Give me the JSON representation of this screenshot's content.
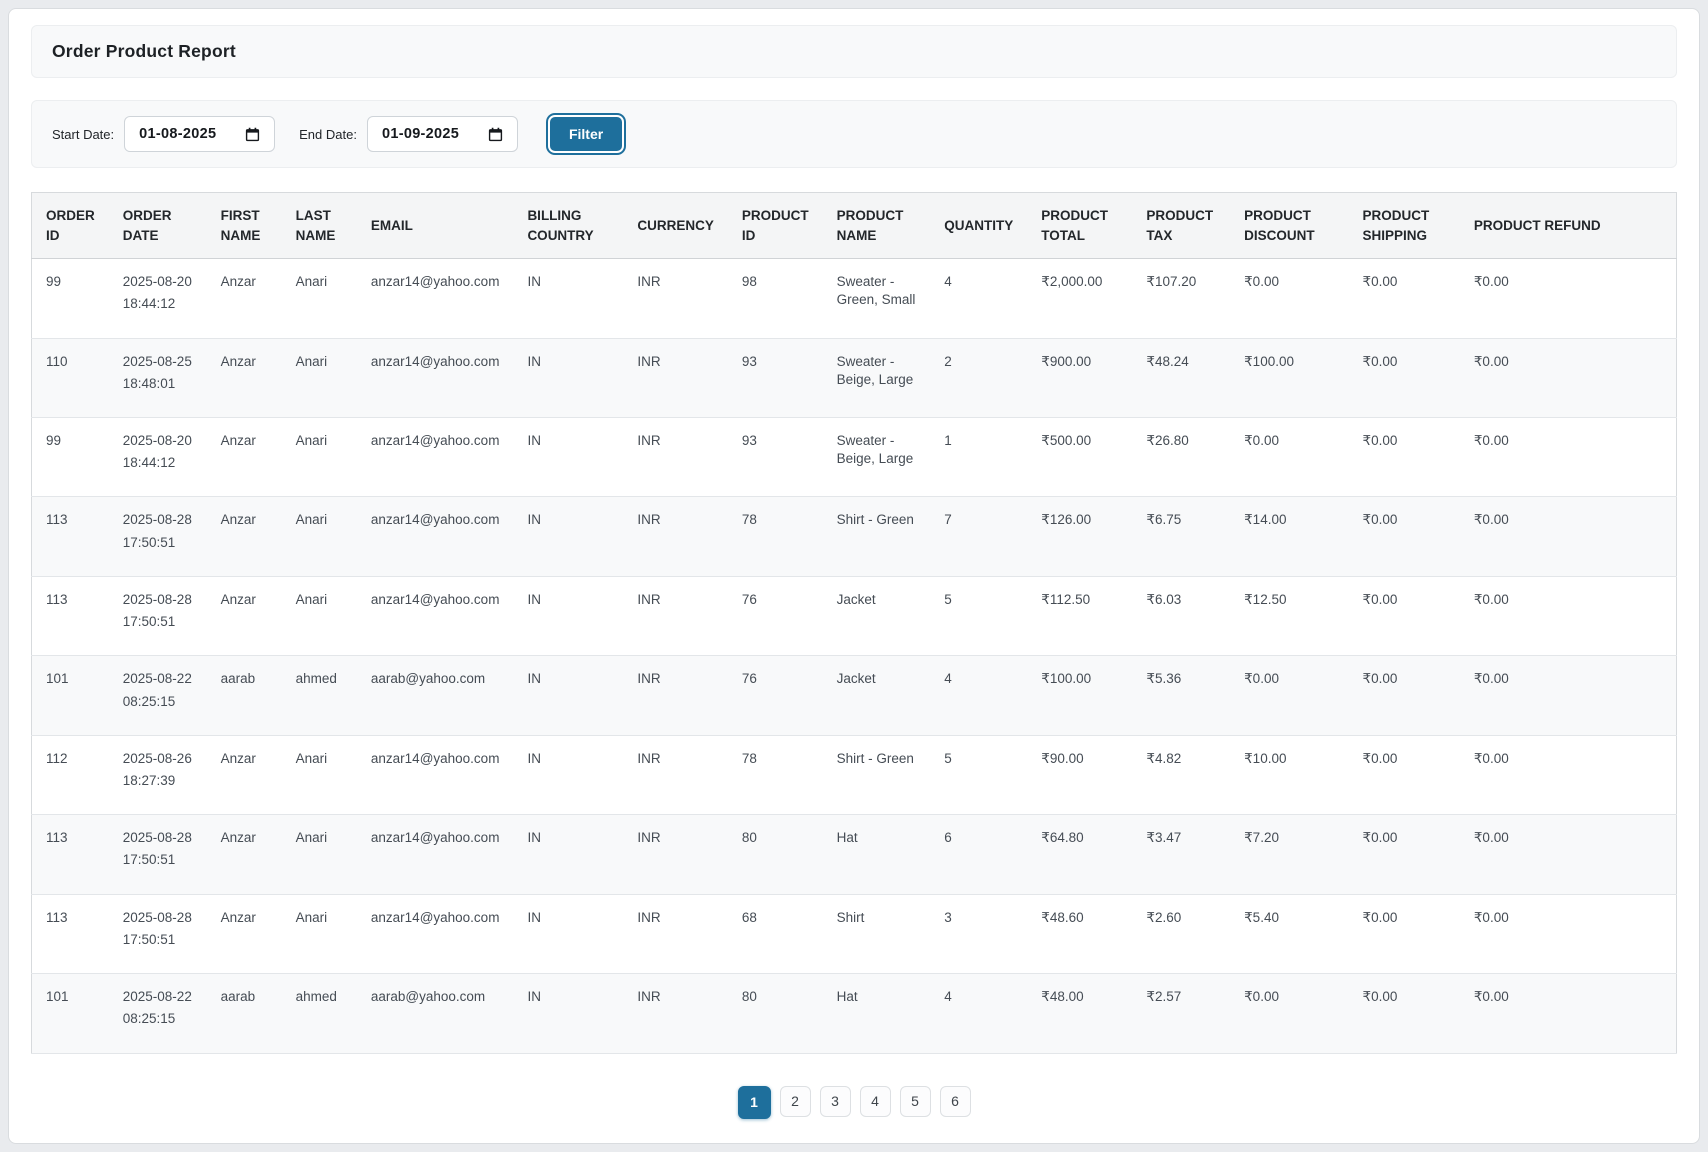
{
  "page_title": "Order Product Report",
  "colors": {
    "accent": "#1e6f9c",
    "card_bg": "#ffffff",
    "bar_bg": "#f8f9fa",
    "thead_bg": "#f4f5f6",
    "stripe_bg": "#f8f9fa",
    "page_bg": "#e9ebee"
  },
  "filters": {
    "start_label": "Start Date:",
    "start_value": "01-08-2025",
    "end_label": "End Date:",
    "end_value": "01-09-2025",
    "button_label": "Filter",
    "calendar_icon": "calendar-icon"
  },
  "table": {
    "columns": [
      "ORDER ID",
      "ORDER DATE",
      "FIRST NAME",
      "LAST NAME",
      "EMAIL",
      "BILLING COUNTRY",
      "CURRENCY",
      "PRODUCT ID",
      "PRODUCT NAME",
      "QUANTITY",
      "PRODUCT TOTAL",
      "PRODUCT TAX",
      "PRODUCT DISCOUNT",
      "PRODUCT SHIPPING",
      "PRODUCT REFUND"
    ],
    "rows": [
      {
        "order_id": "99",
        "order_date": "2025-08-20",
        "order_time": "18:44:12",
        "first_name": "Anzar",
        "last_name": "Anari",
        "email": "anzar14@yahoo.com",
        "billing_country": "IN",
        "currency": "INR",
        "product_id": "98",
        "product_name": "Sweater - Green, Small",
        "quantity": "4",
        "product_total": "₹2,000.00",
        "product_tax": "₹107.20",
        "product_discount": "₹0.00",
        "product_shipping": "₹0.00",
        "product_refund": "₹0.00"
      },
      {
        "order_id": "110",
        "order_date": "2025-08-25",
        "order_time": "18:48:01",
        "first_name": "Anzar",
        "last_name": "Anari",
        "email": "anzar14@yahoo.com",
        "billing_country": "IN",
        "currency": "INR",
        "product_id": "93",
        "product_name": "Sweater - Beige, Large",
        "quantity": "2",
        "product_total": "₹900.00",
        "product_tax": "₹48.24",
        "product_discount": "₹100.00",
        "product_shipping": "₹0.00",
        "product_refund": "₹0.00"
      },
      {
        "order_id": "99",
        "order_date": "2025-08-20",
        "order_time": "18:44:12",
        "first_name": "Anzar",
        "last_name": "Anari",
        "email": "anzar14@yahoo.com",
        "billing_country": "IN",
        "currency": "INR",
        "product_id": "93",
        "product_name": "Sweater - Beige, Large",
        "quantity": "1",
        "product_total": "₹500.00",
        "product_tax": "₹26.80",
        "product_discount": "₹0.00",
        "product_shipping": "₹0.00",
        "product_refund": "₹0.00"
      },
      {
        "order_id": "113",
        "order_date": "2025-08-28",
        "order_time": "17:50:51",
        "first_name": "Anzar",
        "last_name": "Anari",
        "email": "anzar14@yahoo.com",
        "billing_country": "IN",
        "currency": "INR",
        "product_id": "78",
        "product_name": "Shirt - Green",
        "quantity": "7",
        "product_total": "₹126.00",
        "product_tax": "₹6.75",
        "product_discount": "₹14.00",
        "product_shipping": "₹0.00",
        "product_refund": "₹0.00"
      },
      {
        "order_id": "113",
        "order_date": "2025-08-28",
        "order_time": "17:50:51",
        "first_name": "Anzar",
        "last_name": "Anari",
        "email": "anzar14@yahoo.com",
        "billing_country": "IN",
        "currency": "INR",
        "product_id": "76",
        "product_name": "Jacket",
        "quantity": "5",
        "product_total": "₹112.50",
        "product_tax": "₹6.03",
        "product_discount": "₹12.50",
        "product_shipping": "₹0.00",
        "product_refund": "₹0.00"
      },
      {
        "order_id": "101",
        "order_date": "2025-08-22",
        "order_time": "08:25:15",
        "first_name": "aarab",
        "last_name": "ahmed",
        "email": "aarab@yahoo.com",
        "billing_country": "IN",
        "currency": "INR",
        "product_id": "76",
        "product_name": "Jacket",
        "quantity": "4",
        "product_total": "₹100.00",
        "product_tax": "₹5.36",
        "product_discount": "₹0.00",
        "product_shipping": "₹0.00",
        "product_refund": "₹0.00"
      },
      {
        "order_id": "112",
        "order_date": "2025-08-26",
        "order_time": "18:27:39",
        "first_name": "Anzar",
        "last_name": "Anari",
        "email": "anzar14@yahoo.com",
        "billing_country": "IN",
        "currency": "INR",
        "product_id": "78",
        "product_name": "Shirt - Green",
        "quantity": "5",
        "product_total": "₹90.00",
        "product_tax": "₹4.82",
        "product_discount": "₹10.00",
        "product_shipping": "₹0.00",
        "product_refund": "₹0.00"
      },
      {
        "order_id": "113",
        "order_date": "2025-08-28",
        "order_time": "17:50:51",
        "first_name": "Anzar",
        "last_name": "Anari",
        "email": "anzar14@yahoo.com",
        "billing_country": "IN",
        "currency": "INR",
        "product_id": "80",
        "product_name": "Hat",
        "quantity": "6",
        "product_total": "₹64.80",
        "product_tax": "₹3.47",
        "product_discount": "₹7.20",
        "product_shipping": "₹0.00",
        "product_refund": "₹0.00"
      },
      {
        "order_id": "113",
        "order_date": "2025-08-28",
        "order_time": "17:50:51",
        "first_name": "Anzar",
        "last_name": "Anari",
        "email": "anzar14@yahoo.com",
        "billing_country": "IN",
        "currency": "INR",
        "product_id": "68",
        "product_name": "Shirt",
        "quantity": "3",
        "product_total": "₹48.60",
        "product_tax": "₹2.60",
        "product_discount": "₹5.40",
        "product_shipping": "₹0.00",
        "product_refund": "₹0.00"
      },
      {
        "order_id": "101",
        "order_date": "2025-08-22",
        "order_time": "08:25:15",
        "first_name": "aarab",
        "last_name": "ahmed",
        "email": "aarab@yahoo.com",
        "billing_country": "IN",
        "currency": "INR",
        "product_id": "80",
        "product_name": "Hat",
        "quantity": "4",
        "product_total": "₹48.00",
        "product_tax": "₹2.57",
        "product_discount": "₹0.00",
        "product_shipping": "₹0.00",
        "product_refund": "₹0.00"
      }
    ]
  },
  "pagination": {
    "pages": [
      {
        "label": "1",
        "active": true
      },
      {
        "label": "2",
        "active": false
      },
      {
        "label": "3",
        "active": false
      },
      {
        "label": "4",
        "active": false
      },
      {
        "label": "5",
        "active": false
      },
      {
        "label": "6",
        "active": false
      }
    ]
  }
}
